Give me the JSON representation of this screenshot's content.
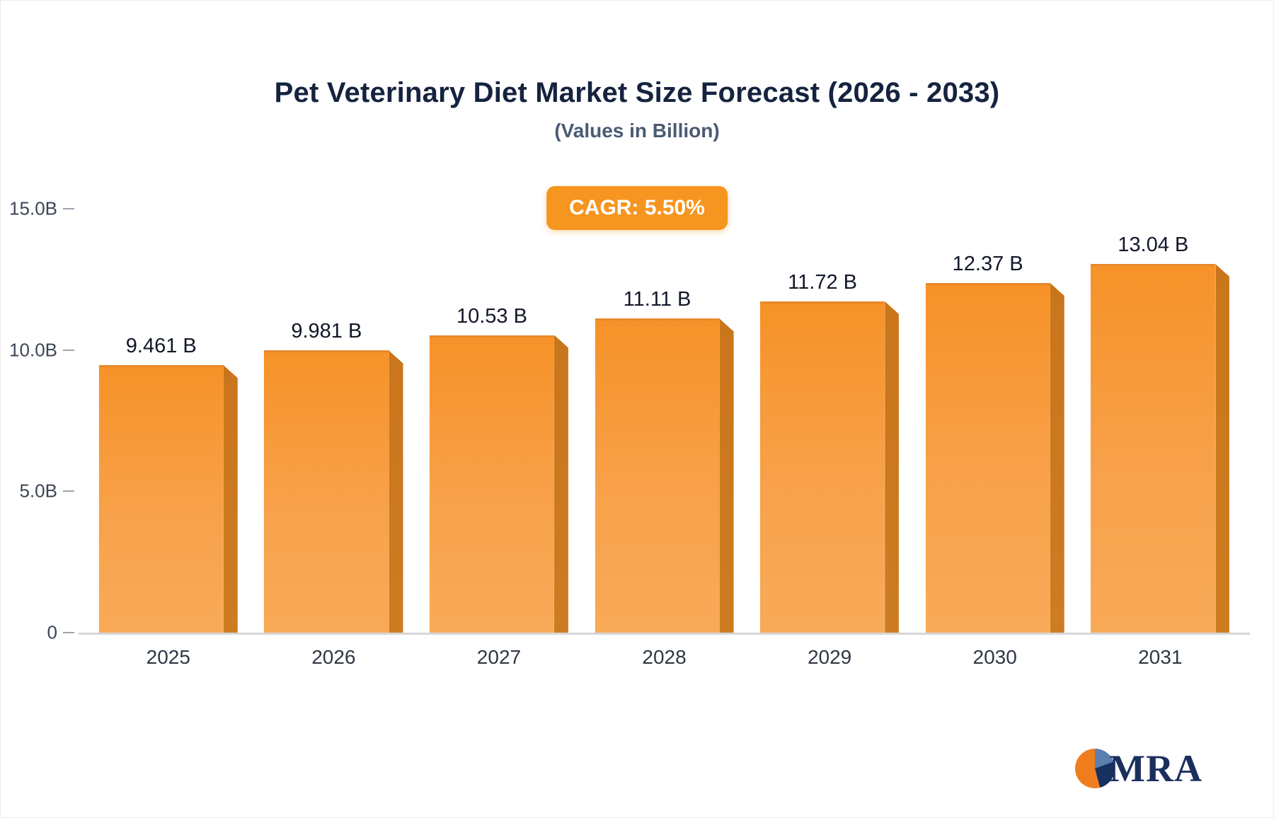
{
  "title": "Pet Veterinary Diet Market Size Forecast (2026 - 2033)",
  "subtitle": "(Values in Billion)",
  "badge": {
    "label": "CAGR: 5.50%",
    "color": "#f6951f"
  },
  "logo": {
    "text": "MRA"
  },
  "chart_data": {
    "type": "bar",
    "title": "Pet Veterinary Diet Market Size Forecast (2026 - 2033)",
    "subtitle": "(Values in Billion)",
    "categories": [
      "2025",
      "2026",
      "2027",
      "2028",
      "2029",
      "2030",
      "2031"
    ],
    "values": [
      9.461,
      9.981,
      10.53,
      11.11,
      11.72,
      12.37,
      13.04
    ],
    "value_labels": [
      "9.461 B",
      "9.981 B",
      "10.53 B",
      "11.11 B",
      "11.72 B",
      "12.37 B",
      "13.04 B"
    ],
    "cagr": "CAGR: 5.50%",
    "xlabel": "",
    "ylabel": "",
    "ylim": [
      0,
      15
    ],
    "ytick_values": [
      0,
      5,
      10,
      15
    ],
    "ytick_labels": [
      "0",
      "5.0B",
      "10.0B",
      "15.0B"
    ],
    "grid": false,
    "legend": "none",
    "bar_color": "#f69228",
    "bar_side_color": "#c9751c",
    "unit": "Billion USD"
  }
}
